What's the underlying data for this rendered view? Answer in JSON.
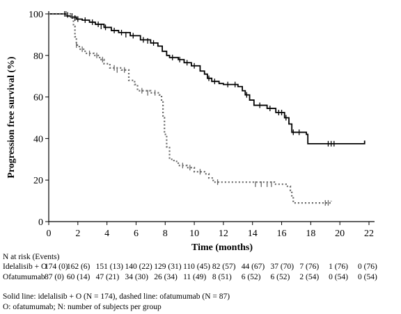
{
  "chart_data": {
    "type": "line",
    "xlabel": "Time (months)",
    "ylabel": "Progression free survival (%)",
    "xlim": [
      0,
      22
    ],
    "ylim": [
      0,
      100
    ],
    "xticks": [
      "0",
      "2",
      "4",
      "6",
      "8",
      "10",
      "12",
      "14",
      "16",
      "18",
      "20",
      "22"
    ],
    "yticks": [
      "0",
      "20",
      "40",
      "60",
      "80",
      "100"
    ],
    "grid": false,
    "series": [
      {
        "style": "solid",
        "color": "#000000",
        "points": [
          [
            0,
            100
          ],
          [
            1.0,
            100
          ],
          [
            1.2,
            99
          ],
          [
            1.5,
            98.5
          ],
          [
            1.9,
            97.5
          ],
          [
            2.3,
            97
          ],
          [
            2.8,
            96
          ],
          [
            3.2,
            95
          ],
          [
            3.8,
            93.5
          ],
          [
            4.3,
            92
          ],
          [
            4.8,
            91
          ],
          [
            5.6,
            89.5
          ],
          [
            6.3,
            87.5
          ],
          [
            7.0,
            86
          ],
          [
            7.5,
            84.5
          ],
          [
            7.8,
            82
          ],
          [
            8.1,
            80
          ],
          [
            8.3,
            79
          ],
          [
            8.9,
            78
          ],
          [
            9.3,
            76.5
          ],
          [
            9.8,
            75
          ],
          [
            10.4,
            72.5
          ],
          [
            10.7,
            71
          ],
          [
            10.9,
            69
          ],
          [
            11.2,
            67.5
          ],
          [
            11.7,
            66.5
          ],
          [
            12.0,
            66
          ],
          [
            13.0,
            65
          ],
          [
            13.3,
            63
          ],
          [
            13.5,
            61
          ],
          [
            13.8,
            58.5
          ],
          [
            14.1,
            56
          ],
          [
            15.0,
            54.5
          ],
          [
            15.6,
            52.5
          ],
          [
            16.2,
            50
          ],
          [
            16.5,
            47
          ],
          [
            16.7,
            43
          ],
          [
            17.7,
            42
          ],
          [
            17.8,
            37.5
          ],
          [
            21.7,
            37.5
          ],
          [
            21.7,
            39
          ]
        ],
        "censors": [
          [
            1.1,
            100
          ],
          [
            1.3,
            99.5
          ],
          [
            1.6,
            99
          ],
          [
            1.8,
            98
          ],
          [
            2.0,
            97.5
          ],
          [
            2.5,
            97
          ],
          [
            3.0,
            96
          ],
          [
            3.4,
            95
          ],
          [
            3.6,
            94
          ],
          [
            3.9,
            93.5
          ],
          [
            4.5,
            92
          ],
          [
            5.0,
            91
          ],
          [
            5.3,
            90
          ],
          [
            5.8,
            89.5
          ],
          [
            6.5,
            87.5
          ],
          [
            6.8,
            87
          ],
          [
            7.2,
            86
          ],
          [
            8.5,
            79
          ],
          [
            9.0,
            78
          ],
          [
            9.5,
            76.5
          ],
          [
            10.0,
            75
          ],
          [
            11.0,
            69
          ],
          [
            11.4,
            67.5
          ],
          [
            12.3,
            66
          ],
          [
            12.8,
            66
          ],
          [
            13.6,
            61
          ],
          [
            14.5,
            56
          ],
          [
            15.2,
            54.5
          ],
          [
            15.8,
            52.5
          ],
          [
            16.0,
            52.5
          ],
          [
            16.3,
            50
          ],
          [
            16.8,
            43
          ],
          [
            17.2,
            43
          ],
          [
            19.2,
            37.5
          ],
          [
            19.4,
            37.5
          ],
          [
            19.6,
            37.5
          ]
        ]
      },
      {
        "style": "dashed",
        "color": "#666666",
        "points": [
          [
            0,
            100
          ],
          [
            1.5,
            100
          ],
          [
            1.55,
            98
          ],
          [
            1.7,
            94
          ],
          [
            1.8,
            89
          ],
          [
            1.9,
            85
          ],
          [
            2.1,
            83
          ],
          [
            2.5,
            81
          ],
          [
            3.1,
            80
          ],
          [
            3.5,
            78
          ],
          [
            3.8,
            76
          ],
          [
            4.2,
            74
          ],
          [
            5.0,
            73
          ],
          [
            5.5,
            68
          ],
          [
            5.9,
            66
          ],
          [
            6.1,
            63
          ],
          [
            7.0,
            62
          ],
          [
            7.6,
            61
          ],
          [
            7.75,
            58
          ],
          [
            7.85,
            50
          ],
          [
            7.95,
            42
          ],
          [
            8.1,
            36
          ],
          [
            8.3,
            30
          ],
          [
            8.6,
            29
          ],
          [
            8.9,
            27
          ],
          [
            9.5,
            26
          ],
          [
            10.0,
            24
          ],
          [
            10.7,
            23
          ],
          [
            11.0,
            21
          ],
          [
            11.3,
            19
          ],
          [
            15.5,
            18
          ],
          [
            16.3,
            17
          ],
          [
            16.6,
            15
          ],
          [
            16.7,
            12
          ],
          [
            16.8,
            9
          ],
          [
            19.4,
            9
          ],
          [
            19.4,
            10
          ]
        ],
        "censors": [
          [
            1.2,
            100
          ],
          [
            1.9,
            85
          ],
          [
            2.3,
            83
          ],
          [
            2.8,
            81
          ],
          [
            3.3,
            80
          ],
          [
            3.7,
            78
          ],
          [
            4.5,
            74
          ],
          [
            4.7,
            73
          ],
          [
            5.2,
            73
          ],
          [
            6.4,
            63
          ],
          [
            6.8,
            62
          ],
          [
            7.3,
            62
          ],
          [
            9.2,
            27
          ],
          [
            9.7,
            26
          ],
          [
            10.4,
            24
          ],
          [
            11.6,
            19
          ],
          [
            14.2,
            18
          ],
          [
            14.6,
            18
          ],
          [
            15.0,
            18
          ],
          [
            15.3,
            18
          ],
          [
            19.0,
            9
          ],
          [
            19.2,
            9
          ]
        ]
      }
    ],
    "risk_table": {
      "header": "N at risk (Events)",
      "times": [
        0,
        2,
        4,
        6,
        8,
        10,
        12,
        14,
        16,
        18,
        20,
        22
      ],
      "rows": [
        {
          "label": "Idelalisib + O",
          "cells": [
            "174 (0)",
            "162 (6)",
            "151 (13)",
            "140 (22)",
            "129 (31)",
            "110 (45)",
            "82 (57)",
            "44 (67)",
            "37 (70)",
            "7 (76)",
            "1 (76)",
            "0 (76)"
          ]
        },
        {
          "label": "Ofatumumab",
          "cells": [
            "87 (0)",
            "60 (14)",
            "47 (21)",
            "34 (30)",
            "26 (34)",
            "11 (49)",
            "8 (51)",
            "6 (52)",
            "6 (52)",
            "2 (54)",
            "0 (54)",
            "0 (54)"
          ]
        }
      ]
    },
    "footnotes": [
      "Solid line: idelalisib + O (N = 174), dashed line: ofatumumab (N = 87)",
      "O: ofatumumab; N: number of subjects per group"
    ]
  }
}
